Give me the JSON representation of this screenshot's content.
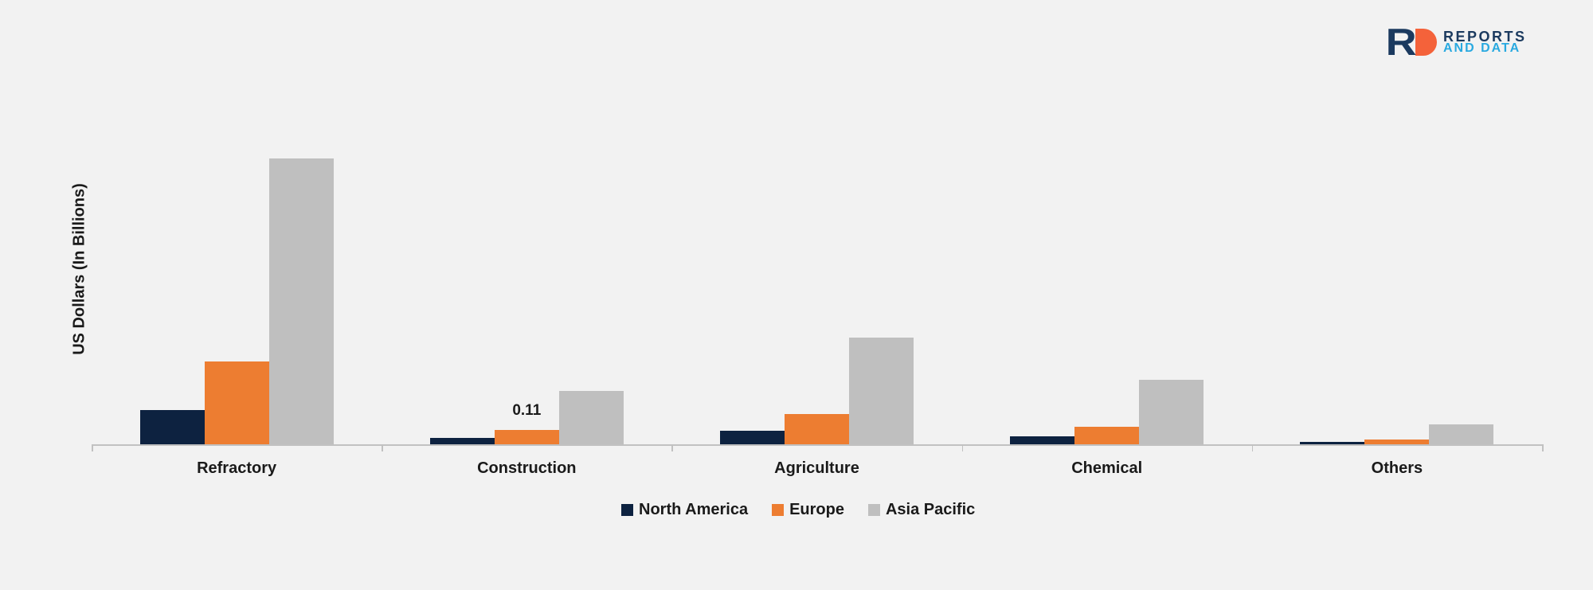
{
  "background_color": "#f2f2f2",
  "text_color": "#1a1a1a",
  "logo": {
    "monogram_r": "R",
    "line1": "REPORTS",
    "line2": "AND DATA",
    "colors": {
      "navy": "#1b3a5f",
      "orange": "#f4623a",
      "light_blue": "#29a9e0"
    }
  },
  "chart_data": {
    "type": "bar",
    "title": "",
    "ylabel": "US Dollars (In Billions)",
    "xlabel": "",
    "categories": [
      "Refractory",
      "Construction",
      "Agriculture",
      "Chemical",
      "Others"
    ],
    "series": [
      {
        "name": "North America",
        "color": "#0d2240",
        "values": [
          0.25,
          0.05,
          0.1,
          0.06,
          0.02
        ]
      },
      {
        "name": "Europe",
        "color": "#ed7d31",
        "values": [
          0.6,
          0.11,
          0.22,
          0.13,
          0.04
        ]
      },
      {
        "name": "Asia Pacific",
        "color": "#bfbfbf",
        "values": [
          2.05,
          0.39,
          0.77,
          0.47,
          0.15
        ]
      }
    ],
    "data_labels": [
      {
        "category_index": 1,
        "series_index": 1,
        "text": "0.11"
      }
    ],
    "ylim": [
      0,
      2.2
    ],
    "grid": false,
    "y_axis_ticks_visible": false,
    "legend_position": "bottom",
    "axis_color": "#c1c1c1"
  }
}
